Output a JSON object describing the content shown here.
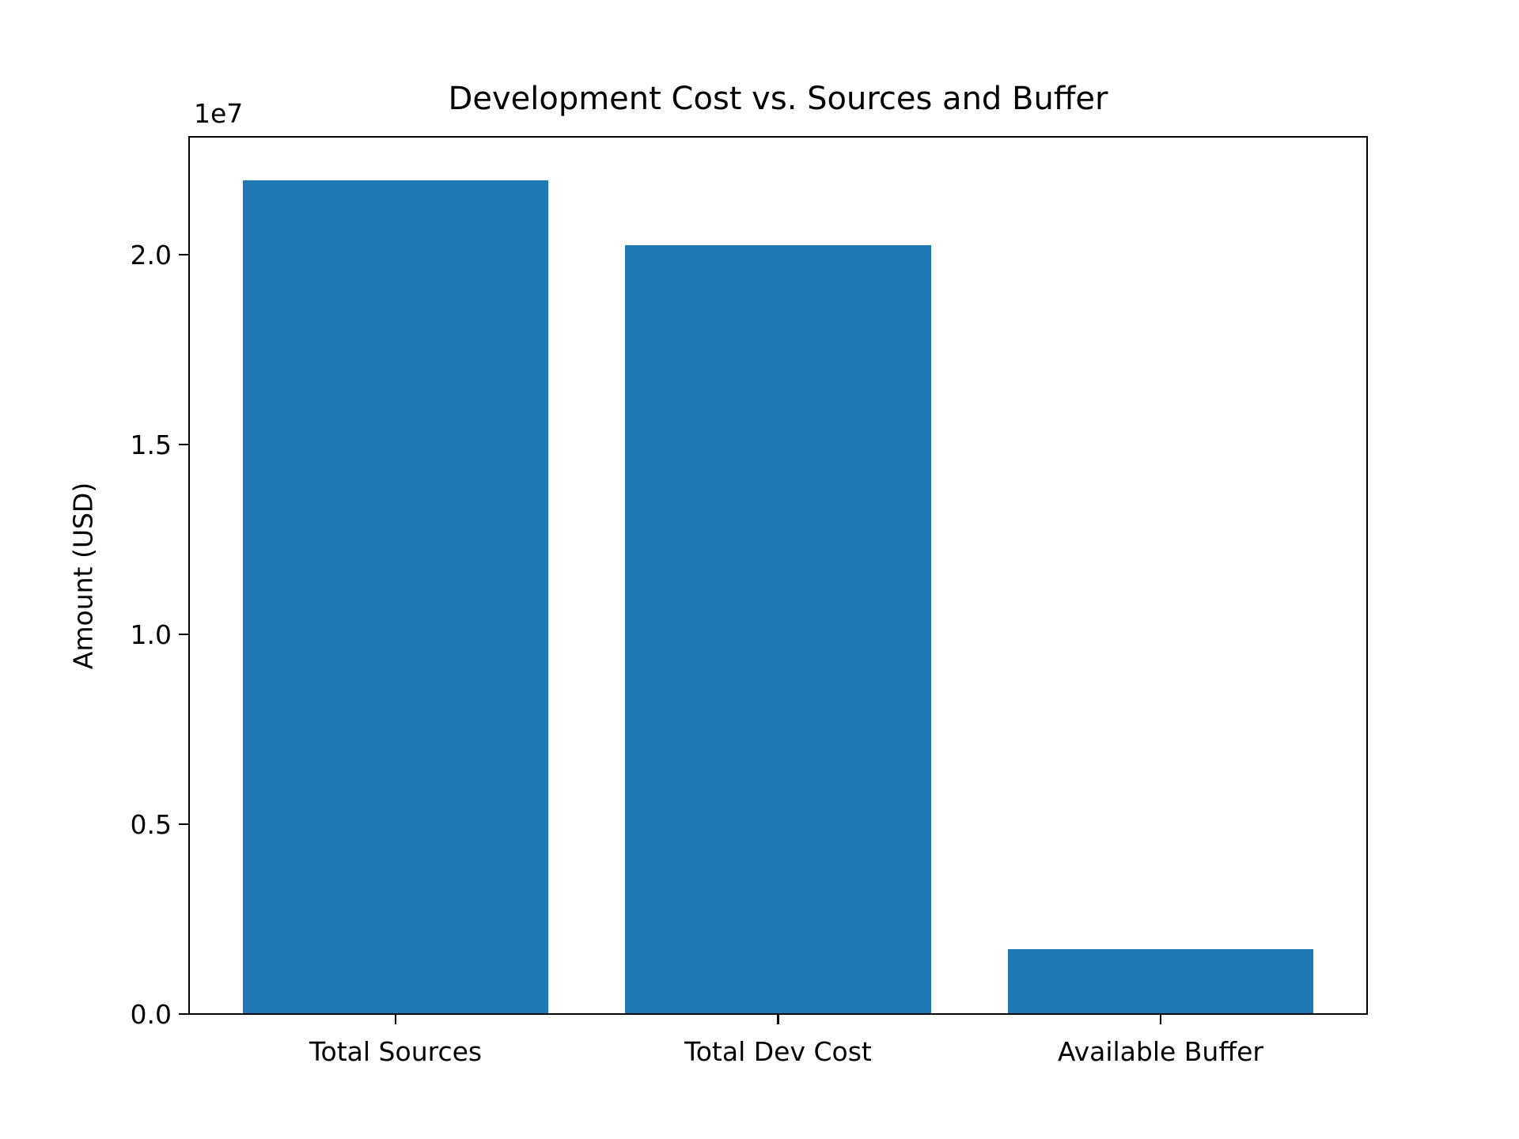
{
  "chart_data": {
    "type": "bar",
    "title": "Development Cost vs. Sources and Buffer",
    "ylabel": "Amount (USD)",
    "xlabel": "",
    "offset_text": "1e7",
    "categories": [
      "Total Sources",
      "Total Dev Cost",
      "Available Buffer"
    ],
    "values": [
      21950000,
      20250000,
      1700000
    ],
    "ylim": [
      0,
      23100000
    ],
    "yticks": [
      0,
      5000000,
      10000000,
      15000000,
      20000000
    ],
    "ytick_labels": [
      "0.0",
      "0.5",
      "1.0",
      "1.5",
      "2.0"
    ],
    "bar_color": "#1f77b4",
    "axis_color": "#000000",
    "grid": false,
    "legend_position": "none"
  }
}
